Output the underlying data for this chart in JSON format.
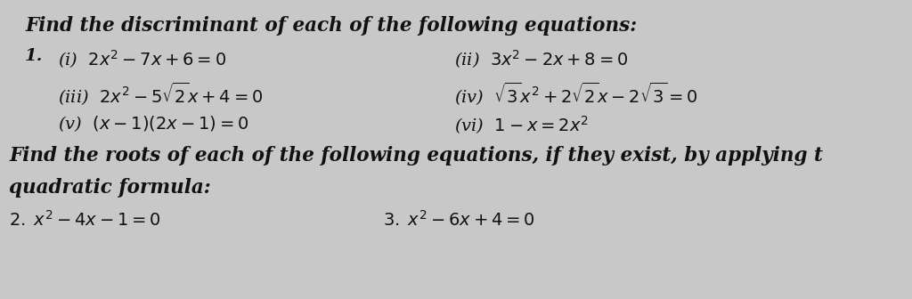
{
  "background_color": "#c8c8c8",
  "text_color": "#111111",
  "title_line": "Find the discriminant of each of the following equations:",
  "item_i": "(i)  $2x^2-7x+6=0$",
  "item_ii": "(ii)  $3x^2-2x+8=0$",
  "item_iii": "(iii)  $2x^2-5\\sqrt{2}x+4=0$",
  "item_iv": "(iv)  $\\sqrt{3}x^2+2\\sqrt{2}x-2\\sqrt{3}=0$",
  "item_v": "(v)  $(x-1)(2x-1)=0$",
  "item_vi": "(vi)  $1-x=2x^2$",
  "footer_line1": "Find the roots of each of the following equations, if they exist, by applying t",
  "footer_line2": "quadratic formula:",
  "footer_item2": "$2.\\; x^2-4x-1=0$",
  "footer_item3": "$3.\\; x^2-6x+4=0$",
  "figsize": [
    10.24,
    3.36
  ],
  "dpi": 100
}
